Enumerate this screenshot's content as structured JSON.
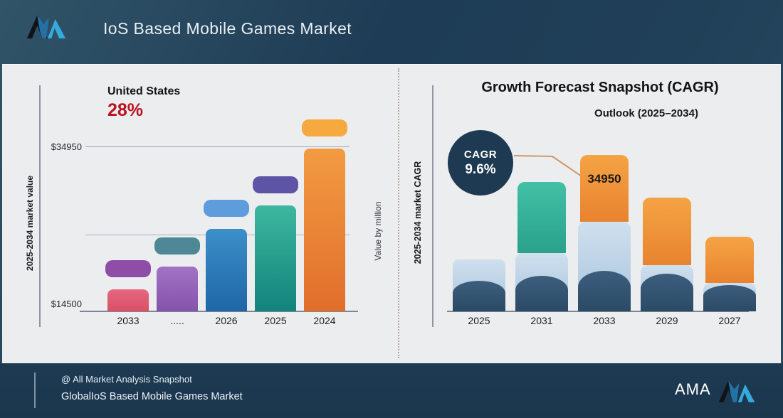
{
  "header": {
    "title": "IoS Based Mobile Games Market"
  },
  "footer": {
    "line1": "@ All Market Analysis Snapshot",
    "line2": "GlobalIoS Based Mobile Games Market",
    "brand": "AMA"
  },
  "colors": {
    "header_bg": "#1e3c55",
    "panel_bg": "#ecedef",
    "accent_red": "#bb1220",
    "badge_navy": "#1d3a52",
    "connector": "#cf9a6d",
    "axis": "#8d96a2",
    "gridline": "#a0a6ae",
    "logo_black": "#101418",
    "logo_blue": "#2272a8",
    "logo_lightblue": "#35aadd"
  },
  "chart_data": [
    {
      "type": "bar",
      "title": "United States",
      "highlight": "28%",
      "ylabel": "2025-2034 market value",
      "ylabel_secondary": "Value by million",
      "ylim": [
        14500,
        34950
      ],
      "yticks": [
        "$34950",
        "$14500"
      ],
      "grid": true,
      "legend": "none",
      "categories": [
        "2033",
        ".....",
        "2026",
        "2025",
        "2024"
      ],
      "values": [
        17250,
        20100,
        24800,
        27700,
        34800
      ],
      "bar_colors": [
        [
          "#e4697f",
          "#da4f66"
        ],
        [
          "#a173c4",
          "#8653ab"
        ],
        [
          "#3c8fc9",
          "#1f66a6"
        ],
        [
          "#3db79e",
          "#12837c"
        ],
        [
          "#f29b42",
          "#e06e2b"
        ]
      ],
      "cap_colors": [
        "#8e4da6",
        "#4e8795",
        "#5f9cdb",
        "#5e54a6",
        "#f6a93f"
      ]
    },
    {
      "type": "stacked-bar",
      "title": "Growth Forecast Snapshot (CAGR)",
      "subtitle": "Outlook (2025–2034)",
      "badge": {
        "label": "CAGR",
        "value": "9.6%"
      },
      "ylabel": "2025-2034 market CAGR",
      "grid": false,
      "legend": "none",
      "categories": [
        "2025",
        "2031",
        "2033",
        "2029",
        "2027"
      ],
      "annotation": {
        "text": "34950",
        "category": "2033"
      },
      "segment_unit": "relative height (no numeric axis shown in figure)",
      "bars": [
        {
          "label": "2025",
          "base": 31,
          "mid": 42,
          "top": 0,
          "top_color": null
        },
        {
          "label": "2031",
          "base": 38,
          "mid": 44,
          "top": 100,
          "top_color": [
            "#42c0a6",
            "#2aa18b"
          ]
        },
        {
          "label": "2033",
          "base": 45,
          "mid": 81,
          "top": 94,
          "top_color": [
            "#f5a344",
            "#e8832f"
          ]
        },
        {
          "label": "2029",
          "base": 41,
          "mid": 24,
          "top": 95,
          "top_color": [
            "#f5a344",
            "#e8832f"
          ]
        },
        {
          "label": "2027",
          "base": 25,
          "mid": 15,
          "top": 65,
          "top_color": [
            "#f5a344",
            "#e8832f"
          ]
        }
      ],
      "base_color": [
        "#3c5e7d",
        "#2b4a66"
      ],
      "mid_color": [
        "#cfe0ee",
        "#a8c3dc"
      ]
    }
  ]
}
